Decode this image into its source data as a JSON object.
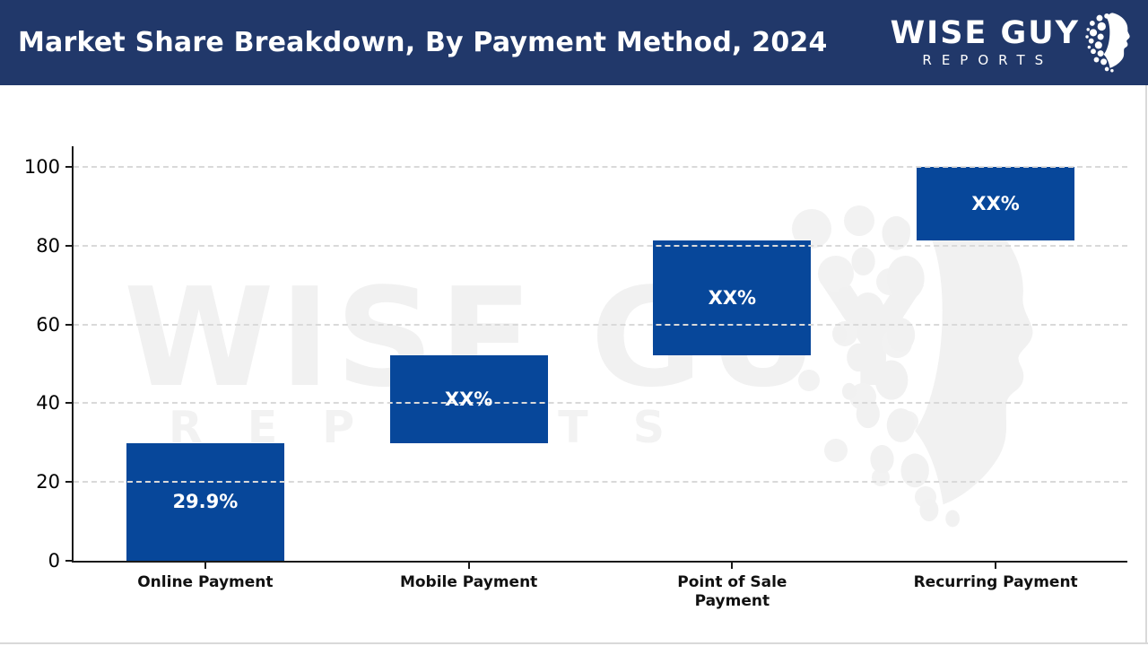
{
  "header": {
    "title": "Market Share Breakdown, By Payment Method, 2024",
    "logo": {
      "wordmark": "WISE GUY",
      "subtext": "REPORTS"
    }
  },
  "watermark": {
    "wordmark": "WISE GUY",
    "subtext": "REPORTS"
  },
  "chart_data": {
    "type": "bar",
    "subtype": "waterfall",
    "title": "Market Share Breakdown, By Payment Method, 2024",
    "categories": [
      "Online Payment",
      "Mobile Payment",
      "Point of Sale Payment",
      "Recurring Payment"
    ],
    "categories_display": [
      [
        "Online Payment"
      ],
      [
        "Mobile Payment"
      ],
      [
        "Point of Sale",
        "Payment"
      ],
      [
        "Recurring Payment"
      ]
    ],
    "series": [
      {
        "name": "Market share (%)",
        "segments": [
          {
            "category": "Online Payment",
            "start": 0,
            "end": 29.9,
            "label": "29.9%"
          },
          {
            "category": "Mobile Payment",
            "start": 29.9,
            "end": 52.2,
            "label": "XX%"
          },
          {
            "category": "Point of Sale Payment",
            "start": 52.2,
            "end": 81.3,
            "label": "XX%"
          },
          {
            "category": "Recurring Payment",
            "start": 81.3,
            "end": 100,
            "label": "XX%"
          }
        ]
      }
    ],
    "ylim": [
      0,
      100
    ],
    "yticks": [
      0,
      20,
      40,
      60,
      80,
      100
    ],
    "xlabel": "",
    "ylabel": "",
    "grid": {
      "horizontal": true,
      "style": "dashed",
      "drawn_over_bars": true
    },
    "legend": null
  },
  "colors": {
    "header_bg": "#21386a",
    "bar": "#07479a",
    "value_label": "#ffffff",
    "grid": "#d9d9d9",
    "axis": "#1a1a1a",
    "watermark": "#f1f1f1",
    "edge_line": "#d9d9d9"
  }
}
